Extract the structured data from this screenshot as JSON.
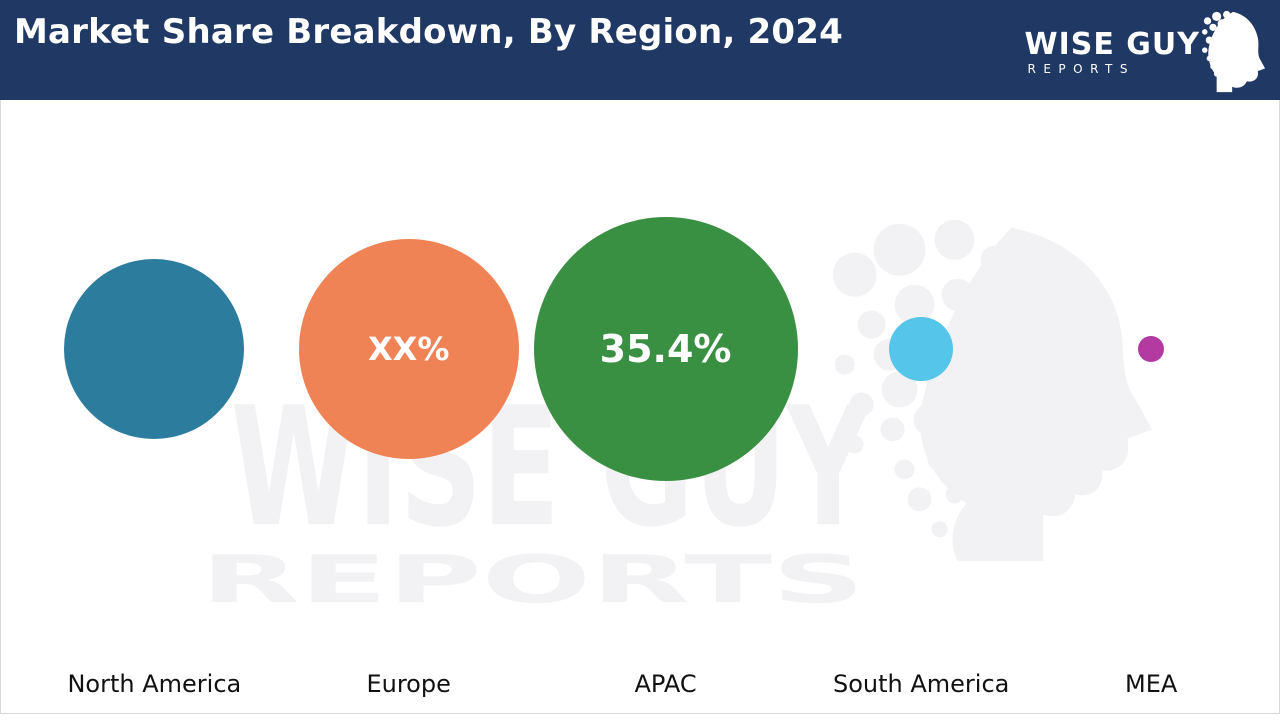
{
  "header": {
    "title": "Market Share Breakdown, By Region, 2024",
    "logo": {
      "wordmark": "WISE GUY",
      "subtitle": "REPORTS"
    }
  },
  "watermark": {
    "wordmark": "WISE GUY",
    "subtitle": "REPORTS"
  },
  "chart_data": {
    "type": "bubble",
    "title": "Market Share Breakdown, By Region, 2024",
    "categories": [
      "North America",
      "Europe",
      "APAC",
      "South America",
      "MEA"
    ],
    "series": [
      {
        "name": "North America",
        "label": "",
        "radius_px": 90,
        "color": "#2B7C9D",
        "x_frac": 0.12
      },
      {
        "name": "Europe",
        "label": "XX%",
        "radius_px": 110,
        "color": "#F08355",
        "x_frac": 0.319
      },
      {
        "name": "APAC",
        "label": "35.4%",
        "value_pct": 35.4,
        "radius_px": 132,
        "color": "#3A9042",
        "x_frac": 0.52
      },
      {
        "name": "South America",
        "label": "",
        "radius_px": 32,
        "color": "#55C6EA",
        "x_frac": 0.72
      },
      {
        "name": "MEA",
        "label": "",
        "radius_px": 13,
        "color": "#B23AA1",
        "x_frac": 0.9
      }
    ],
    "legend": "none",
    "axes": "none"
  },
  "colors": {
    "header_bg": "#1F3864",
    "canvas_bg": "#FFFFFF",
    "watermark": "#F2F2F5",
    "label_text": "#111111",
    "bubble_text": "#FFFFFF"
  }
}
